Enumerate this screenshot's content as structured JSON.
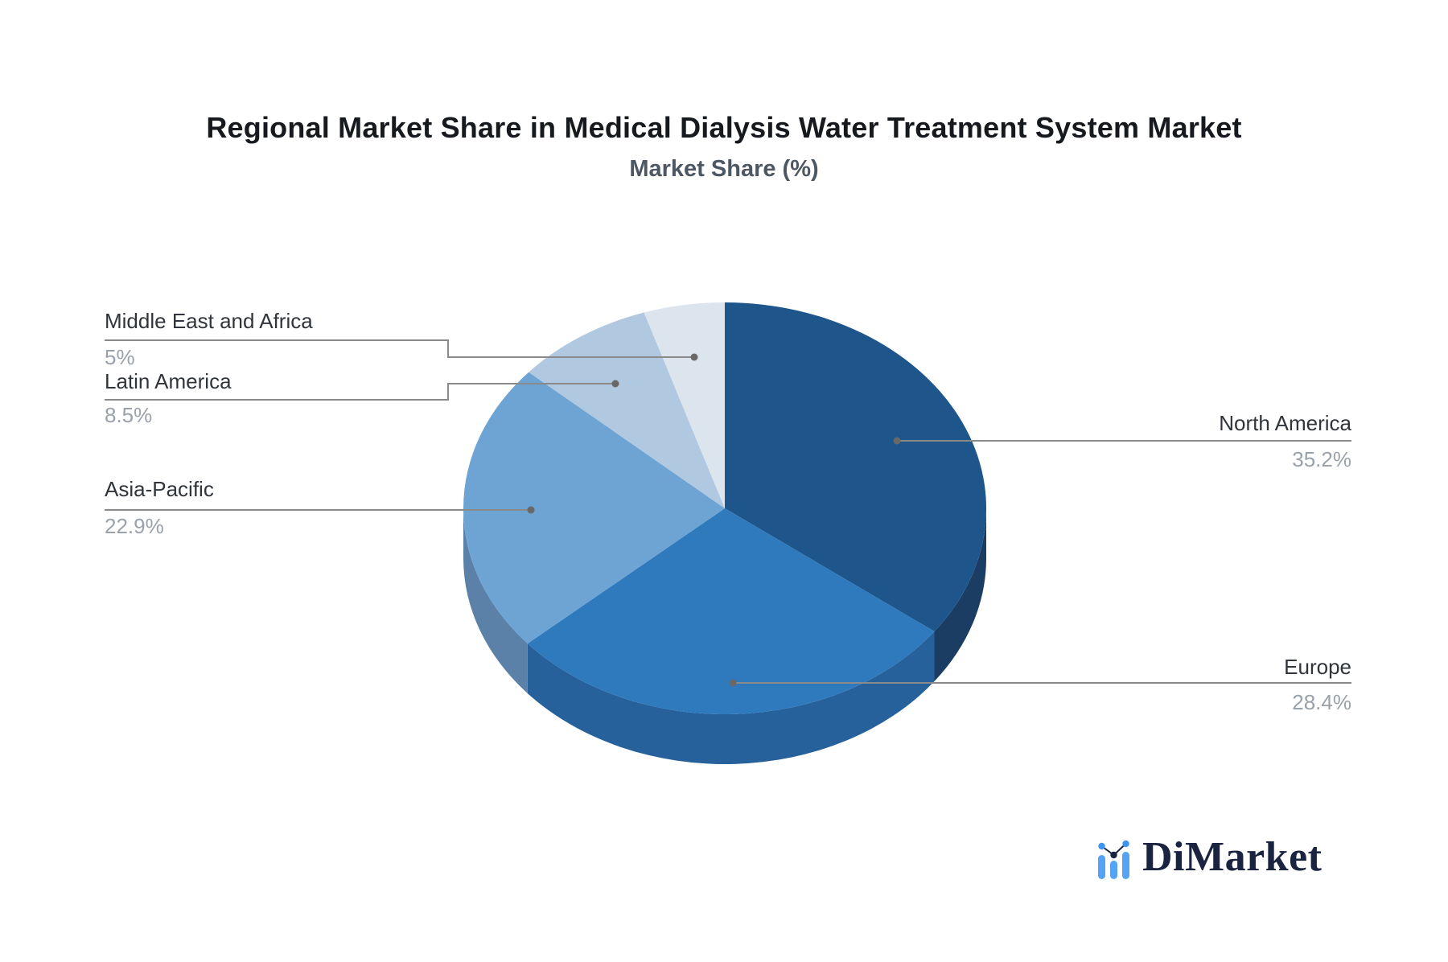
{
  "header": {
    "title": "Regional Market Share in Medical Dialysis Water Treatment System Market",
    "subtitle": "Market Share (%)"
  },
  "chart_data": {
    "type": "pie",
    "style": "3d-pie",
    "title": "Regional Market Share in Medical Dialysis Water Treatment System Market",
    "subtitle": "Market Share (%)",
    "unit": "%",
    "categories": [
      "North America",
      "Europe",
      "Asia-Pacific",
      "Latin America",
      "Middle East and Africa"
    ],
    "values": [
      35.2,
      28.4,
      22.9,
      8.5,
      5
    ],
    "value_labels": [
      "35.2%",
      "28.4%",
      "22.9%",
      "8.5%",
      "5%"
    ],
    "colors": [
      "#1e568c",
      "#2e7abd",
      "#6ea4d4",
      "#b0c8e0",
      "#dce4ee"
    ],
    "side_colors": [
      "#1c3d63",
      "#26619b",
      "#5b81a8",
      "#9db1c6",
      "#c3cdd9"
    ],
    "start_angle": "12-oclock",
    "direction": "clockwise",
    "legend": "none",
    "callout_style": {
      "line_color": "#8a8a8a",
      "dot_color": "#686868",
      "label_color": "#30353b",
      "value_color": "#9aa1a9"
    }
  },
  "callouts": [
    {
      "region": "North America",
      "value": "35.2%",
      "side": "right"
    },
    {
      "region": "Europe",
      "value": "28.4%",
      "side": "right"
    },
    {
      "region": "Asia-Pacific",
      "value": "22.9%",
      "side": "left"
    },
    {
      "region": "Latin America",
      "value": "8.5%",
      "side": "left"
    },
    {
      "region": "Middle East and Africa",
      "value": "5%",
      "side": "left"
    }
  ],
  "logo": {
    "text": "DiMarket"
  }
}
